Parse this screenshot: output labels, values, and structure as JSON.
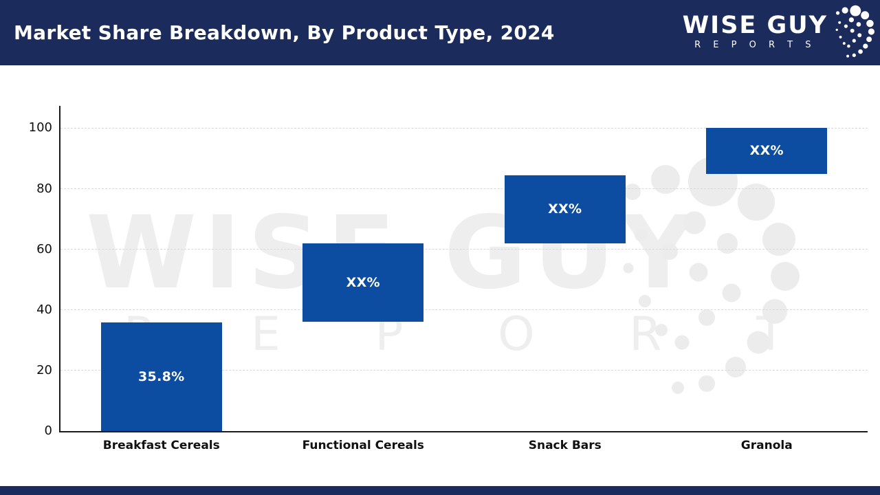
{
  "header": {
    "title": "Market Share Breakdown, By Product Type, 2024",
    "bg_color": "#1a2b5c",
    "logo": {
      "line1": "WISE GUY",
      "line2": "R E P O R T S",
      "icon": "dotted-head-icon",
      "color": "#ffffff"
    }
  },
  "chart_data": {
    "type": "bar",
    "variant": "waterfall",
    "title": "Market Share Breakdown, By Product Type, 2024",
    "categories": [
      "Breakfast Cereals",
      "Functional Cereals",
      "Snack Bars",
      "Granola"
    ],
    "segments": [
      {
        "category": "Breakfast Cereals",
        "start": 0,
        "end": 35.8,
        "label": "35.8%"
      },
      {
        "category": "Functional Cereals",
        "start": 36,
        "end": 62,
        "label": "XX%"
      },
      {
        "category": "Snack Bars",
        "start": 62,
        "end": 84.5,
        "label": "XX%"
      },
      {
        "category": "Granola",
        "start": 85,
        "end": 100,
        "label": "XX%"
      }
    ],
    "y_ticks": [
      0,
      20,
      40,
      60,
      80,
      100
    ],
    "ylim": [
      0,
      106
    ],
    "xlabel": "",
    "ylabel": "",
    "bar_color": "#0d4da1",
    "bar_label_color": "#ffffff",
    "grid": "horizontal-dashed",
    "legend": "none"
  },
  "watermark": {
    "line1": "WISE GUY",
    "line2": "R E P O R T S",
    "icon": "dotted-head-icon",
    "color": "#ededed"
  },
  "footer": {
    "bg_color": "#1a2b5c"
  }
}
